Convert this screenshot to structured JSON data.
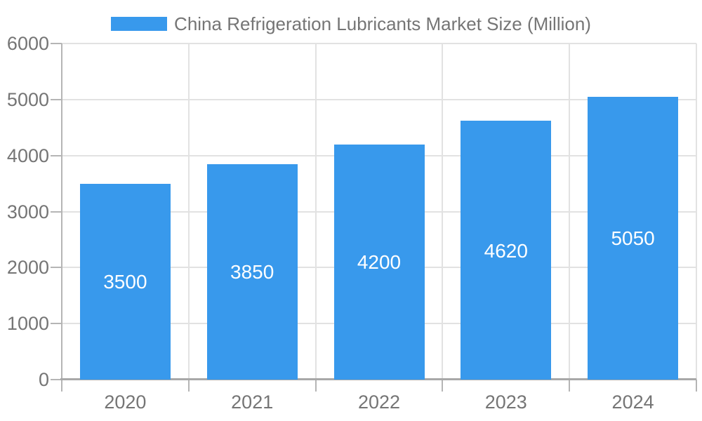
{
  "legend": {
    "label": "China Refrigeration Lubricants Market Size (Million)"
  },
  "chart_data": {
    "type": "bar",
    "title": "China Refrigeration Lubricants Market Size (Million)",
    "series_name": "China Refrigeration Lubricants Market Size (Million)",
    "categories": [
      "2020",
      "2021",
      "2022",
      "2023",
      "2024"
    ],
    "values": [
      3500,
      3850,
      4200,
      4620,
      5050
    ],
    "data_labels": [
      "3500",
      "3850",
      "4200",
      "4620",
      "5050"
    ],
    "xlabel": "",
    "ylabel": "",
    "ylim": [
      0,
      6000
    ],
    "y_tick_step": 1000,
    "y_tick_labels": [
      "0",
      "1000",
      "2000",
      "3000",
      "4000",
      "5000",
      "6000"
    ],
    "grid": true,
    "legend_position": "top"
  },
  "colors": {
    "bar": "#3899EC",
    "data_label": "#FFFFFF",
    "axis_label": "#757575",
    "legend_text": "#757575",
    "gridline": "#E2E2E2",
    "axis_line_x": "#A8A8A8",
    "axis_line_y": "#B5B5B5",
    "tick": "#B5B5B5",
    "background": "#FFFFFF"
  }
}
